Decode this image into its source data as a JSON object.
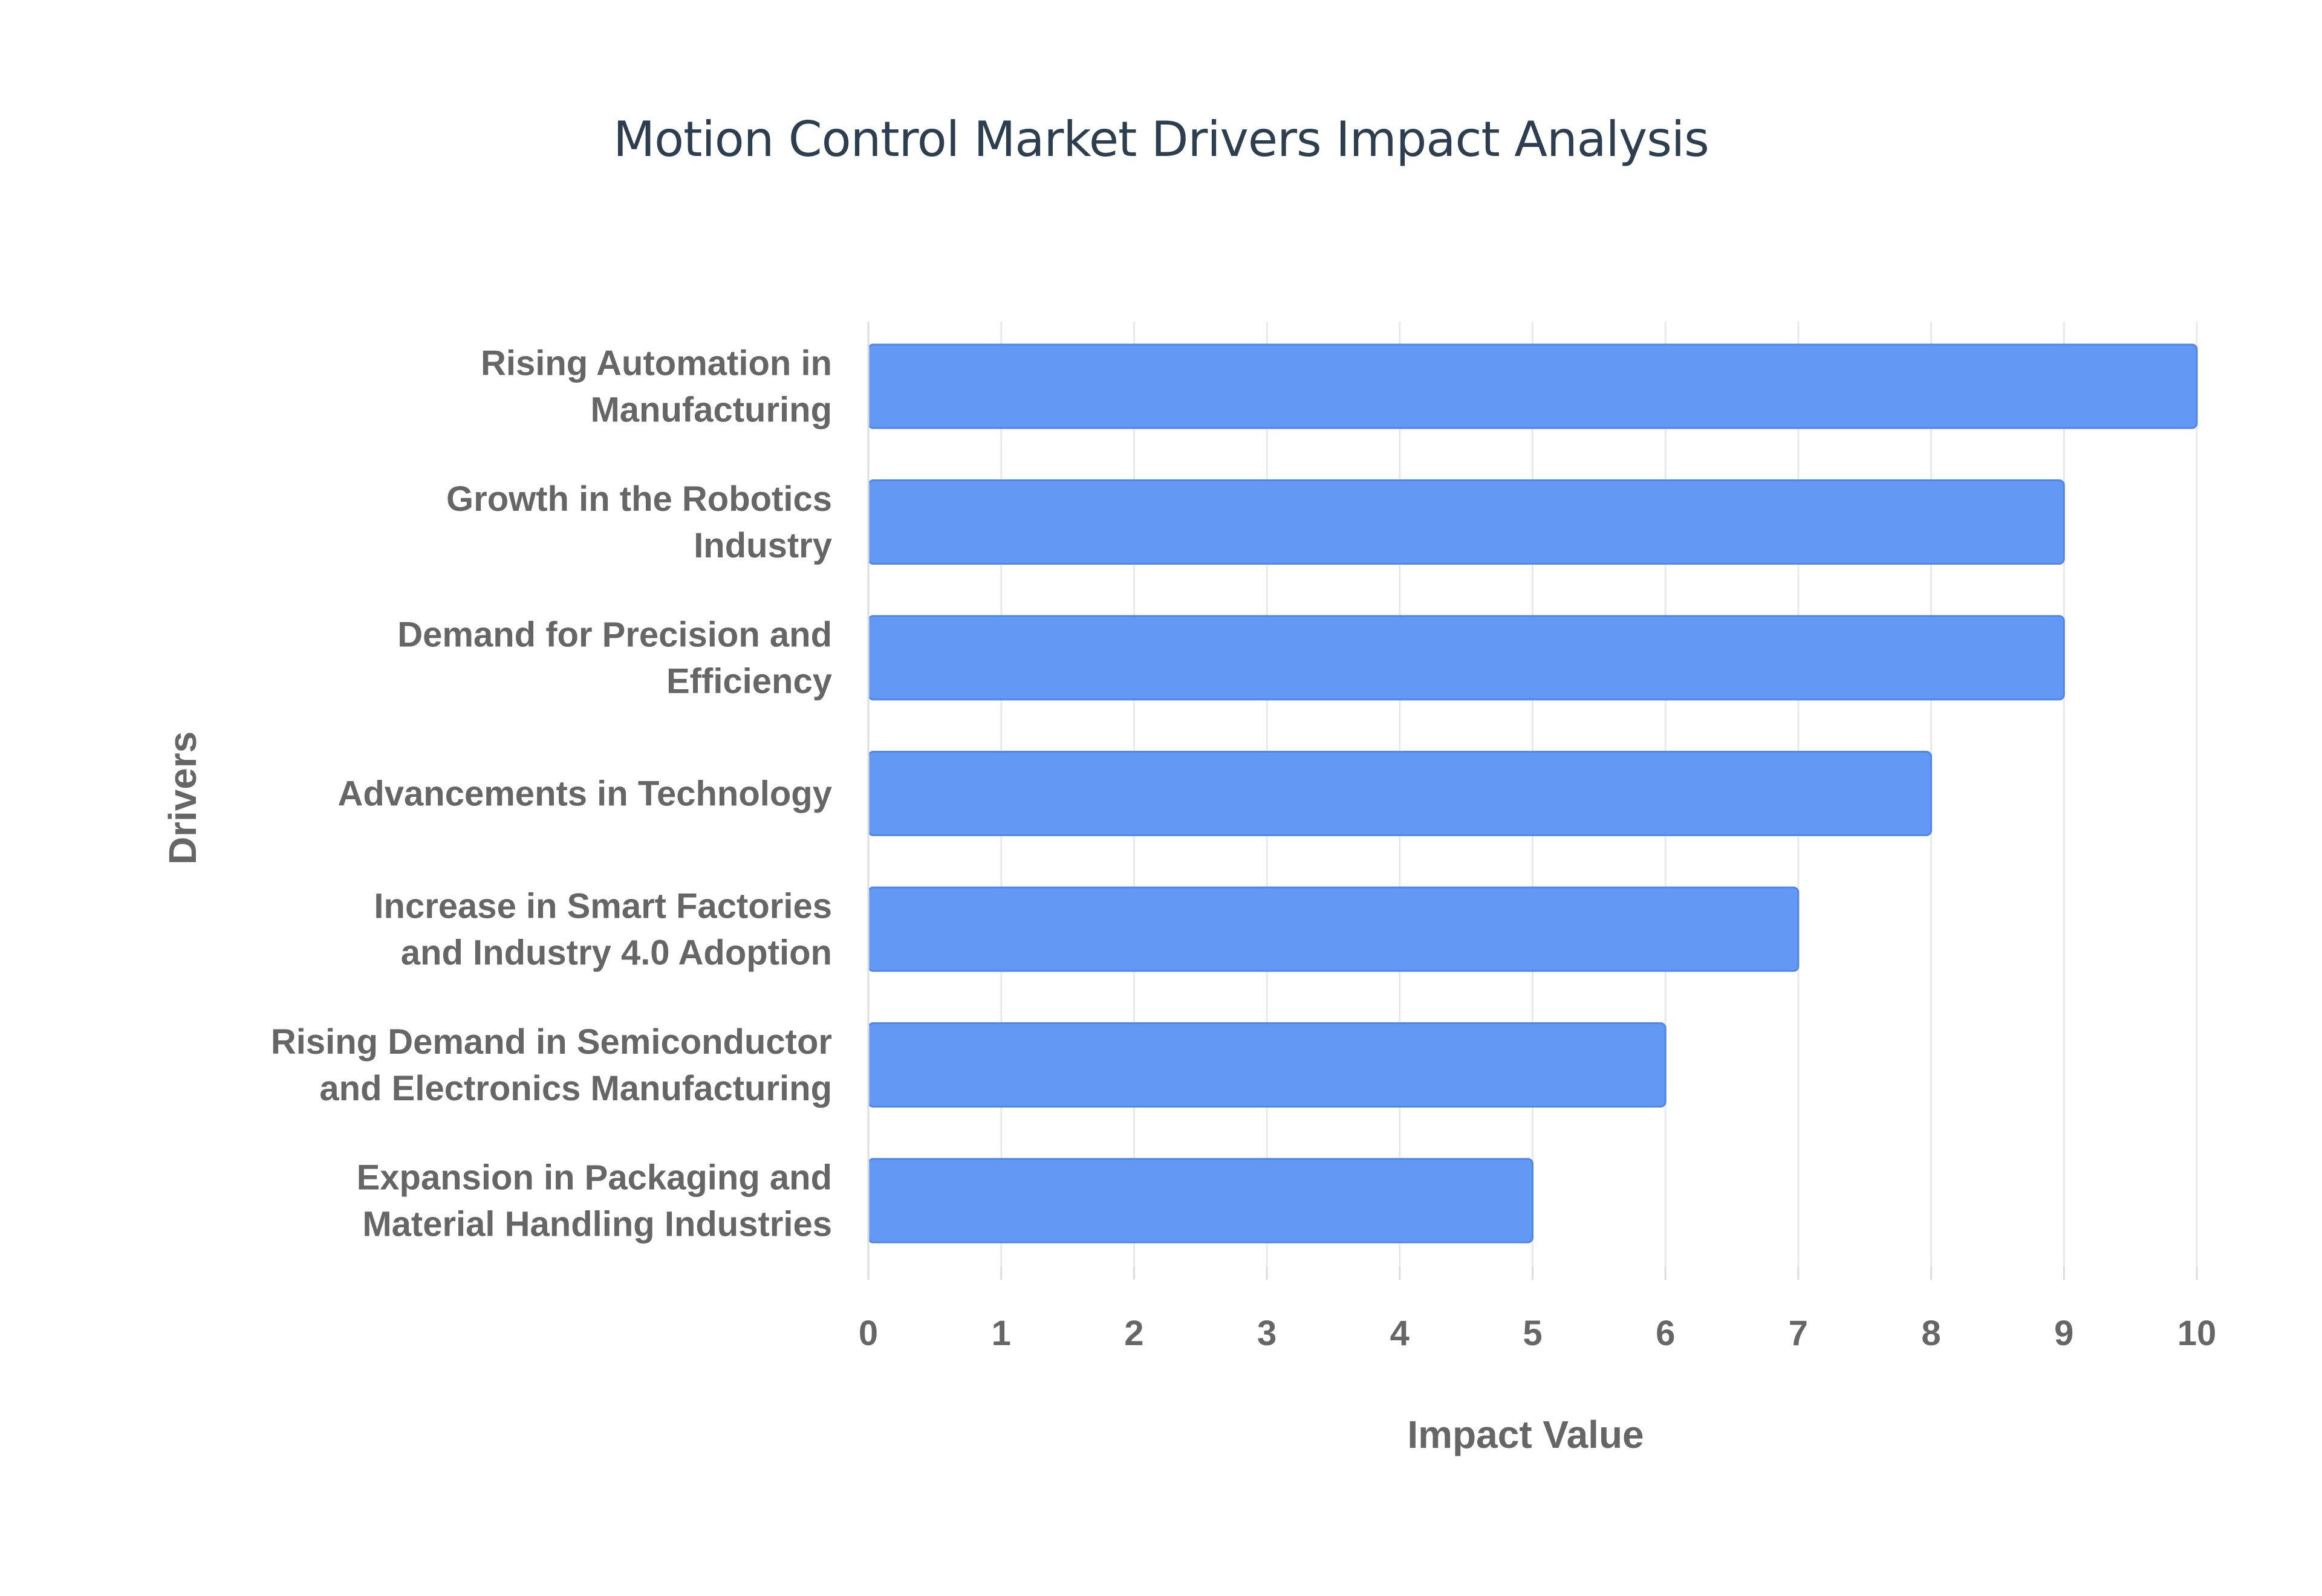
{
  "chart_data": {
    "type": "bar",
    "orientation": "horizontal",
    "title": "Motion Control Market Drivers Impact Analysis",
    "xlabel": "Impact Value",
    "ylabel": "Drivers",
    "xlim": [
      0,
      10
    ],
    "x_ticks": [
      "0",
      "1",
      "2",
      "3",
      "4",
      "5",
      "6",
      "7",
      "8",
      "9",
      "10"
    ],
    "grid": true,
    "legend": "none",
    "categories": [
      [
        "Rising Automation in",
        "Manufacturing"
      ],
      [
        "Growth in the Robotics",
        "Industry"
      ],
      [
        "Demand for Precision and",
        "Efficiency"
      ],
      [
        "Advancements in Technology"
      ],
      [
        "Increase in Smart Factories",
        "and Industry 4.0 Adoption"
      ],
      [
        "Rising Demand in Semiconductor",
        "and Electronics Manufacturing"
      ],
      [
        "Expansion in Packaging and",
        "Material Handling Industries"
      ]
    ],
    "values": [
      10,
      9,
      9,
      8,
      7,
      6,
      5
    ],
    "colors": {
      "bar_fill": "#6399f4",
      "bar_stroke": "#4f86e8"
    }
  }
}
